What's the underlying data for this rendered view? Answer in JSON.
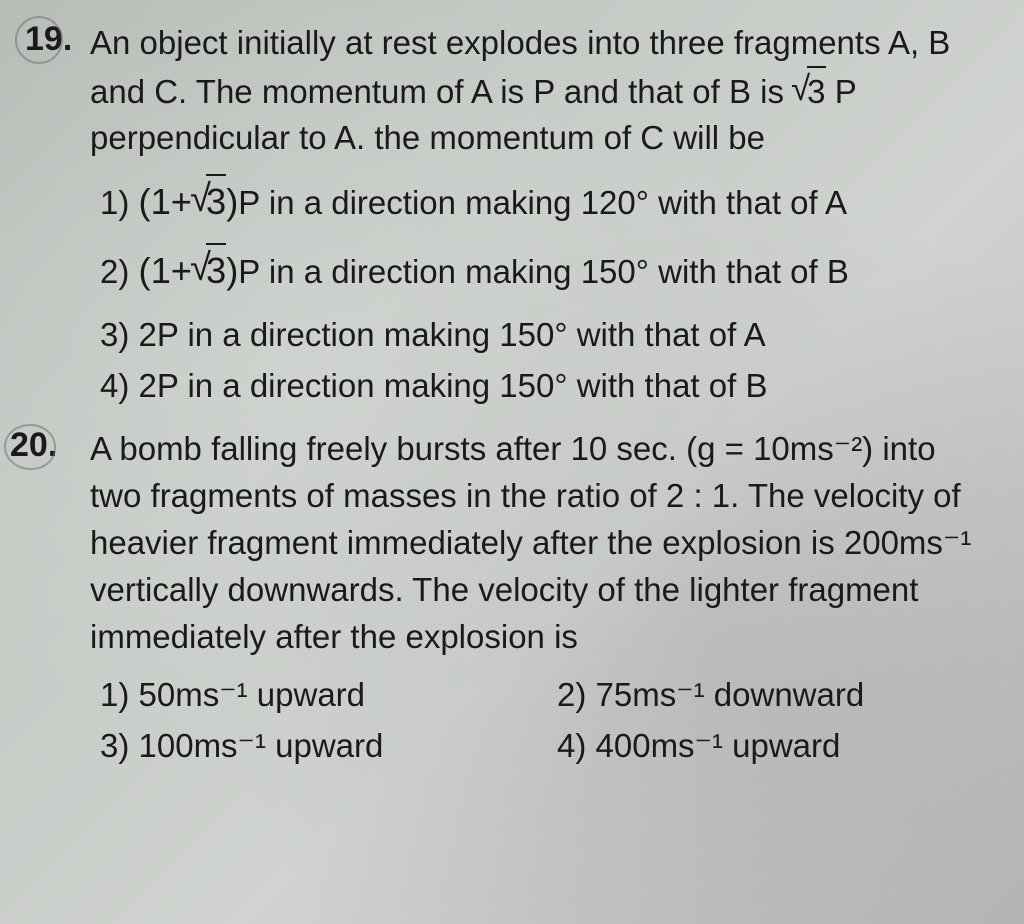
{
  "q19": {
    "number": "19.",
    "body_line1": "An object initially at rest explodes into three fragments",
    "body_line2": "A, B and C. The momentum of A is P and that of B is",
    "body_line3_pre": "",
    "body_line3_post": " P perpendicular to A. the momentum of C will be",
    "sqrt_val": "3",
    "options": {
      "1": {
        "prefix": "1) ",
        "paren_open": "(",
        "expr": "1+",
        "sqrt": "3",
        "paren_close": ")",
        "mid": "P",
        "rest": " in a direction making 120° with that of A"
      },
      "2": {
        "prefix": "2) ",
        "paren_open": "(",
        "expr": "1+",
        "sqrt": "3",
        "paren_close": ")",
        "mid": "P",
        "rest": " in a direction making 150° with that of B"
      },
      "3": "3) 2P in a direction making 150° with that of A",
      "4": "4) 2P in a direction making 150° with that of B"
    }
  },
  "q20": {
    "number": "20.",
    "body": "A bomb falling freely bursts after 10 sec. (g = 10ms⁻²) into two fragments of masses in the ratio of 2 : 1. The velocity of heavier fragment immediately after the explosion is 200ms⁻¹ vertically downwards. The velocity of the lighter fragment immediately after the explosion is",
    "options": {
      "1": "1) 50ms⁻¹ upward",
      "2": "2) 75ms⁻¹ downward",
      "3": "3) 100ms⁻¹ upward",
      "4": "4) 400ms⁻¹ upward"
    }
  }
}
